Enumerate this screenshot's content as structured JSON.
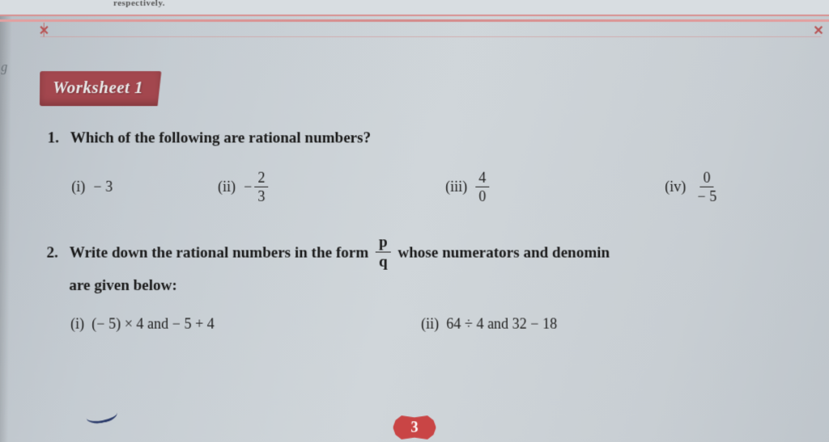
{
  "top_label": "respectively.",
  "badge": "Worksheet 1",
  "q1": {
    "number": "1.",
    "text": "Which of the following are rational numbers?",
    "options": {
      "i": {
        "label": "(i)",
        "value": "− 3"
      },
      "ii": {
        "label": "(ii)",
        "neg": "−",
        "num": "2",
        "den": "3"
      },
      "iii": {
        "label": "(iii)",
        "num": "4",
        "den": "0"
      },
      "iv": {
        "label": "(iv)",
        "num": "0",
        "den": "− 5"
      }
    }
  },
  "q2": {
    "number": "2.",
    "text_a": "Write down the rational numbers in the form",
    "frac": {
      "num": "p",
      "den": "q"
    },
    "text_b": "whose numerators and denomin",
    "text_c": "are given below:",
    "options": {
      "i": {
        "label": "(i)",
        "expr": "(− 5) × 4 and − 5 + 4"
      },
      "ii": {
        "label": "(ii)",
        "expr": "64 ÷ 4 and 32 − 18"
      }
    }
  },
  "page_number": "3",
  "edge_letter": "g",
  "colors": {
    "badge_bg": "#a3474e",
    "page_bg": "#c8ced3",
    "line_pink": "#d49595",
    "text": "#1a1a1a",
    "page_num_bg": "#c94545"
  }
}
